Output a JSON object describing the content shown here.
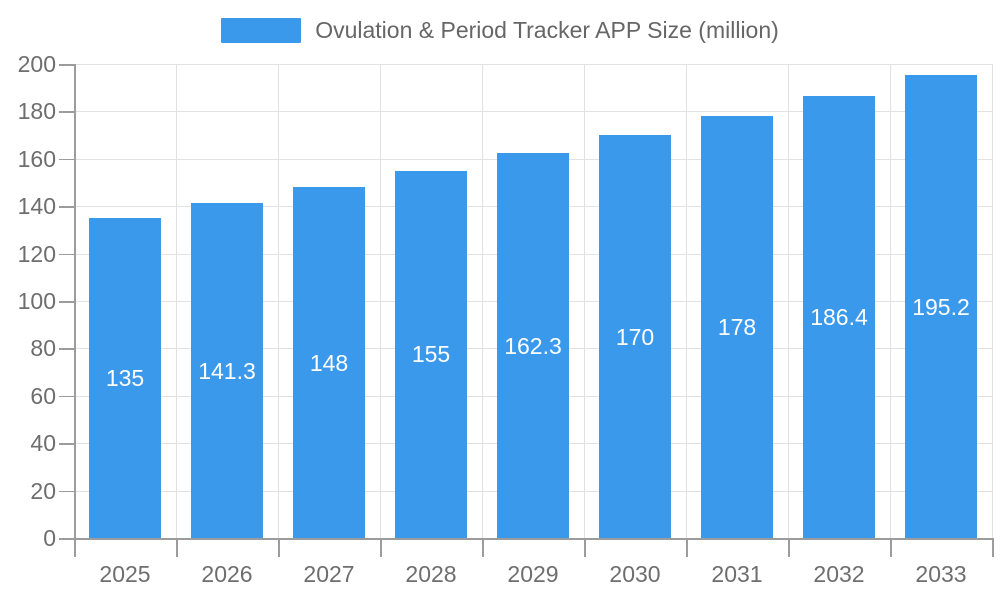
{
  "page": {
    "background": "#FFFFFF"
  },
  "legend": {
    "items": [
      {
        "label": "Ovulation & Period Tracker APP Size (million)",
        "swatch_color": "#3B99EC"
      }
    ]
  },
  "colors": {
    "bar": "#3B99EC",
    "grid": "#E2E2E2",
    "axis": "#9C9C9C",
    "tick_text": "#6E6E6E",
    "legend_text": "#666666",
    "value_text": "#FFFFFF",
    "background": "#FFFFFF"
  },
  "chart_data": {
    "type": "bar",
    "title": "Ovulation & Period Tracker APP Size (million)",
    "legend_entries": [
      "Ovulation & Period Tracker APP Size (million)"
    ],
    "categories": [
      "2025",
      "2026",
      "2027",
      "2028",
      "2029",
      "2030",
      "2031",
      "2032",
      "2033"
    ],
    "values": [
      135,
      141.3,
      148,
      155,
      162.3,
      170,
      178,
      186.4,
      195.2
    ],
    "xlabel": "",
    "ylabel": "",
    "ylim": [
      0,
      200
    ],
    "ytick_step": 20,
    "yticks": [
      0,
      20,
      40,
      60,
      80,
      100,
      120,
      140,
      160,
      180,
      200
    ],
    "grid": true,
    "legend_position": "top-center",
    "value_label_position": "inside-center"
  }
}
